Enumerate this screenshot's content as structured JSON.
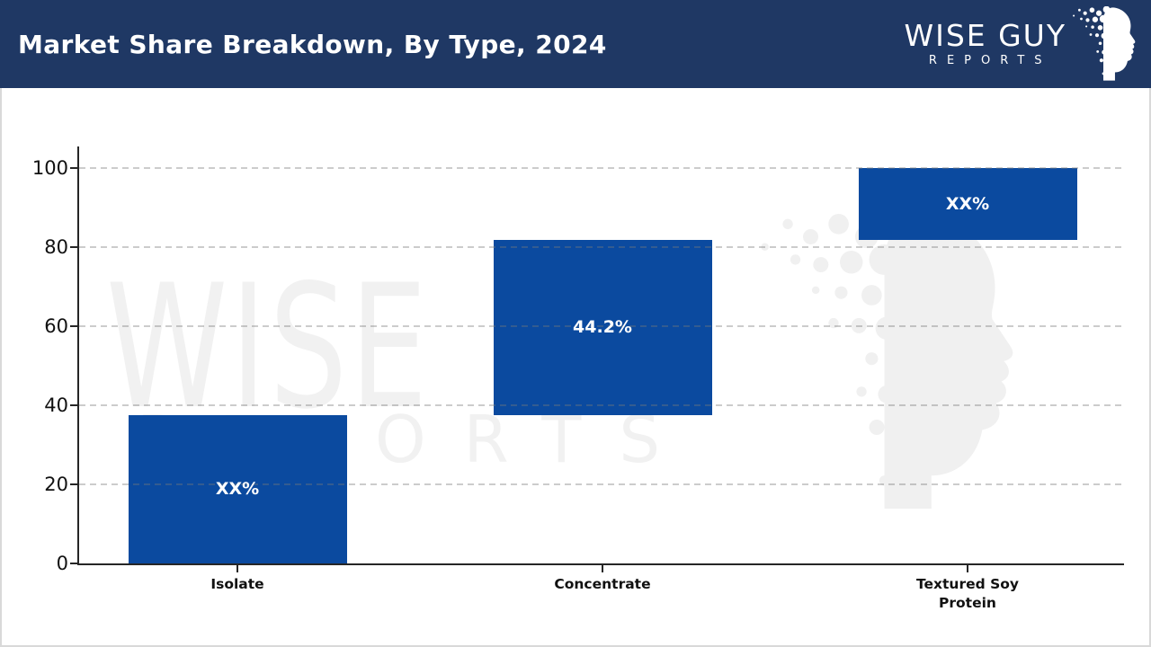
{
  "header": {
    "title": "Market Share Breakdown, By Type, 2024",
    "bg_color": "#1f3864",
    "logo": {
      "line1": "WISE GUY",
      "line2": "REPORTS"
    }
  },
  "watermark": {
    "word": "WISE",
    "subword": "REPORTS"
  },
  "chart_data": {
    "type": "bar",
    "subtype": "floating-segment-waterfall",
    "title": "Market Share Breakdown, By Type, 2024",
    "categories": [
      "Isolate",
      "Concentrate",
      "Textured Soy Protein"
    ],
    "segments": [
      {
        "category": "Isolate",
        "start": 0,
        "end": 37.6,
        "value_label": "XX%"
      },
      {
        "category": "Concentrate",
        "start": 37.6,
        "end": 81.8,
        "value_label": "44.2%"
      },
      {
        "category": "Textured Soy Protein",
        "start": 81.8,
        "end": 100,
        "value_label": "XX%"
      }
    ],
    "xlabel": "",
    "ylabel": "",
    "ylim": [
      0,
      105.5
    ],
    "yticks": [
      0,
      20,
      40,
      60,
      80,
      100
    ],
    "grid": "horizontal-dashed",
    "legend": "none",
    "bar_color": "#0b4a9f",
    "bar_label_color": "#ffffff",
    "axis_color": "#262626",
    "gridline_color": "#d9d9d9"
  }
}
